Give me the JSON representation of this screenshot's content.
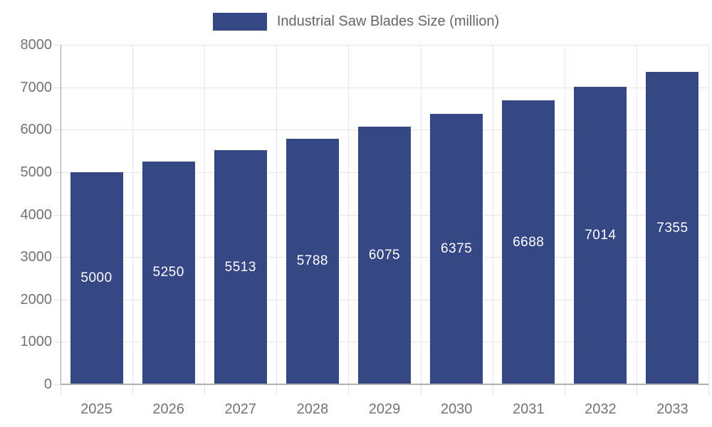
{
  "legend": {
    "label": "Industrial Saw Blades Size (million)"
  },
  "colors": {
    "bar": "#364785",
    "legend_text": "#666666",
    "axis_text": "#737373",
    "gridline": "#e6e6e6",
    "tick_line": "#e0e0e0",
    "axis_line": "#a3a3a3",
    "baseline": "#b0b0b0",
    "data_label": "#ffffff",
    "background": "#ffffff"
  },
  "chart_data": {
    "type": "bar",
    "title": "Industrial Saw Blades Size (million)",
    "categories": [
      "2025",
      "2026",
      "2027",
      "2028",
      "2029",
      "2030",
      "2031",
      "2032",
      "2033"
    ],
    "values": [
      5000,
      5250,
      5513,
      5788,
      6075,
      6375,
      6688,
      7014,
      7355
    ],
    "bar_labels": [
      "5000",
      "5250",
      "5513",
      "5788",
      "6075",
      "6375",
      "6688",
      "7014",
      "7355"
    ],
    "xlabel": "",
    "ylabel": "",
    "ylim": [
      0,
      8000
    ],
    "yticks": [
      0,
      1000,
      2000,
      3000,
      4000,
      5000,
      6000,
      7000,
      8000
    ],
    "grid": true,
    "legend_position": "top"
  }
}
